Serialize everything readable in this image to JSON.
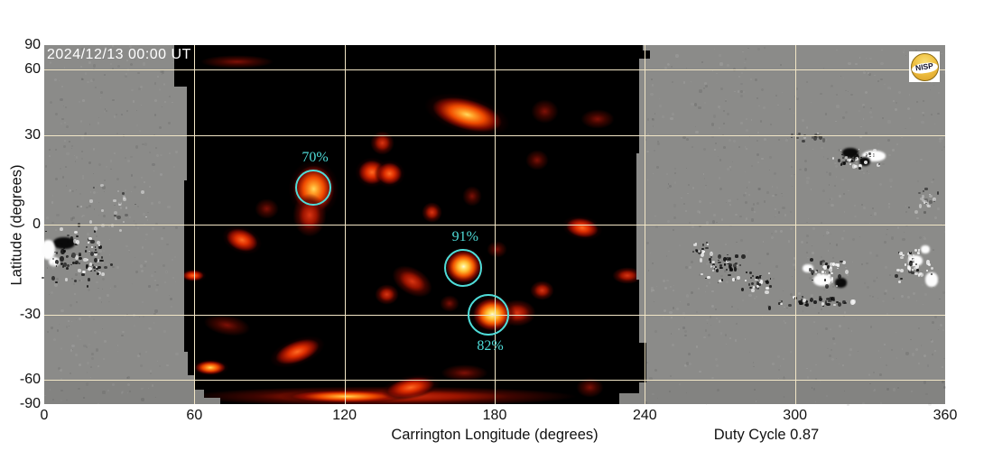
{
  "header": {
    "timestamp": "2024/12/13 00:00 UT",
    "logo_text": "NISP"
  },
  "footer": {
    "duty_cycle_label": "Duty Cycle 0.87"
  },
  "axes": {
    "x": {
      "label": "Carrington Longitude (degrees)",
      "ticks": [
        0,
        60,
        120,
        180,
        240,
        300,
        360
      ],
      "gridlines": [
        60,
        120,
        180,
        240,
        300
      ],
      "range": [
        0,
        360
      ]
    },
    "y": {
      "label": "Latitude (degrees)",
      "ticks": [
        90,
        60,
        30,
        0,
        -30,
        -60,
        -90
      ],
      "gridlines": [
        60,
        30,
        0,
        -30,
        -60
      ],
      "range": [
        -90,
        90
      ],
      "scale": "sine-latitude"
    }
  },
  "colors": {
    "near_side_gray": "#8b8b89",
    "far_side_black": "#000000",
    "grid": "#f2e6c6",
    "annotation_cyan": "#4fdcd8",
    "timestamp_white": "#ffffff",
    "tick_black": "#111111",
    "logo_gold": "#f0c243"
  },
  "chart_data": {
    "type": "heatmap",
    "title": "",
    "xlabel": "Carrington Longitude (degrees)",
    "ylabel": "Latitude (degrees)",
    "xlim": [
      0,
      360
    ],
    "ylim": [
      -90,
      90
    ],
    "grid": true,
    "far_side_window_longitude": [
      57,
      240
    ],
    "detections": [
      {
        "label": "70%",
        "lon": 107.5,
        "lat": 12,
        "r": 20,
        "side": "above"
      },
      {
        "label": "91%",
        "lon": 167.5,
        "lat": -14,
        "r": 21,
        "side": "above"
      },
      {
        "label": "82%",
        "lon": 177.5,
        "lat": -30,
        "r": 23,
        "side": "below"
      }
    ],
    "blobs": [
      {
        "lon": 77,
        "lat": 65,
        "sx": 22,
        "sy": 4,
        "rot": 0,
        "i": 0.3
      },
      {
        "lon": 169,
        "lat": 38,
        "sx": 26,
        "sy": 11,
        "rot": 15,
        "i": 0.9
      },
      {
        "lon": 200,
        "lat": 39,
        "sx": 8,
        "sy": 7,
        "rot": 0,
        "i": 0.35
      },
      {
        "lon": 221,
        "lat": 36,
        "sx": 10,
        "sy": 6,
        "rot": 0,
        "i": 0.3
      },
      {
        "lon": 135,
        "lat": 27,
        "sx": 7,
        "sy": 7,
        "rot": 0,
        "i": 0.5
      },
      {
        "lon": 107.5,
        "lat": 11.5,
        "sx": 15,
        "sy": 17,
        "rot": 0,
        "i": 0.85
      },
      {
        "lon": 106,
        "lat": 3,
        "sx": 10,
        "sy": 13,
        "rot": 0,
        "i": 0.5
      },
      {
        "lon": 131,
        "lat": 17,
        "sx": 10,
        "sy": 9,
        "rot": 0,
        "i": 0.7
      },
      {
        "lon": 138,
        "lat": 16.5,
        "sx": 9,
        "sy": 8,
        "rot": 0,
        "i": 0.6
      },
      {
        "lon": 197,
        "lat": 21,
        "sx": 7,
        "sy": 6,
        "rot": 0,
        "i": 0.35
      },
      {
        "lon": 171,
        "lat": 9,
        "sx": 6,
        "sy": 6,
        "rot": 0,
        "i": 0.3
      },
      {
        "lon": 89,
        "lat": 5,
        "sx": 7,
        "sy": 6,
        "rot": 0,
        "i": 0.35
      },
      {
        "lon": 155,
        "lat": 4,
        "sx": 6,
        "sy": 6,
        "rot": 0,
        "i": 0.5
      },
      {
        "lon": 79,
        "lat": -5,
        "sx": 12,
        "sy": 8,
        "rot": 20,
        "i": 0.6
      },
      {
        "lon": 59.5,
        "lat": -16.5,
        "sx": 8,
        "sy": 4,
        "rot": 0,
        "i": 0.65
      },
      {
        "lon": 147,
        "lat": -18.5,
        "sx": 13,
        "sy": 8,
        "rot": 30,
        "i": 0.55
      },
      {
        "lon": 137,
        "lat": -23,
        "sx": 7,
        "sy": 6,
        "rot": 0,
        "i": 0.5
      },
      {
        "lon": 167.5,
        "lat": -13.5,
        "sx": 13,
        "sy": 12,
        "rot": 0,
        "i": 1.0
      },
      {
        "lon": 181,
        "lat": -8,
        "sx": 6,
        "sy": 5,
        "rot": 0,
        "i": 0.35
      },
      {
        "lon": 215,
        "lat": -1,
        "sx": 12,
        "sy": 7,
        "rot": 10,
        "i": 0.6
      },
      {
        "lon": 199,
        "lat": -21.5,
        "sx": 7,
        "sy": 6,
        "rot": 0,
        "i": 0.5
      },
      {
        "lon": 189,
        "lat": -29.5,
        "sx": 11,
        "sy": 8,
        "rot": 0,
        "i": 0.45
      },
      {
        "lon": 179,
        "lat": -30,
        "sx": 14,
        "sy": 12,
        "rot": 0,
        "i": 1.0
      },
      {
        "lon": 162,
        "lat": -26,
        "sx": 6,
        "sy": 5,
        "rot": 0,
        "i": 0.4
      },
      {
        "lon": 73,
        "lat": -34,
        "sx": 14,
        "sy": 6,
        "rot": 10,
        "i": 0.4
      },
      {
        "lon": 101,
        "lat": -45,
        "sx": 17,
        "sy": 8,
        "rot": -20,
        "i": 0.7
      },
      {
        "lon": 66.5,
        "lat": -53,
        "sx": 11,
        "sy": 5,
        "rot": 0,
        "i": 0.8
      },
      {
        "lon": 168,
        "lat": -55.5,
        "sx": 14,
        "sy": 5,
        "rot": 0,
        "i": 0.3
      },
      {
        "lon": 135.5,
        "lat": -73,
        "sx": 115,
        "sy": 6,
        "rot": 0,
        "i": 0.55
      },
      {
        "lon": 121,
        "lat": -73,
        "sx": 40,
        "sy": 4.5,
        "rot": 0,
        "i": 0.85
      },
      {
        "lon": 146.5,
        "lat": -65,
        "sx": 18,
        "sy": 7,
        "rot": -10,
        "i": 0.75
      },
      {
        "lon": 218,
        "lat": -65,
        "sx": 8,
        "sy": 6,
        "rot": 0,
        "i": 0.3
      },
      {
        "lon": 233,
        "lat": -16.5,
        "sx": 9,
        "sy": 5,
        "rot": 0,
        "i": 0.55
      }
    ],
    "magnetogram_patches": [
      {
        "lon": 8,
        "lat": -6,
        "w": 24,
        "h": 13,
        "color": "black"
      },
      {
        "lon": 1.5,
        "lat": -8,
        "w": 15,
        "h": 22,
        "color": "white"
      },
      {
        "lon": 4,
        "lat": -12,
        "w": 12,
        "h": 10,
        "color": "white"
      },
      {
        "lon": 331.5,
        "lat": 22.5,
        "w": 26,
        "h": 12,
        "color": "white"
      },
      {
        "lon": 322,
        "lat": 23.5,
        "w": 18,
        "h": 11,
        "color": "black"
      },
      {
        "lon": 328,
        "lat": 20.5,
        "w": 12,
        "h": 10,
        "color": "black"
      },
      {
        "lon": 311,
        "lat": -18,
        "w": 20,
        "h": 13,
        "color": "white"
      },
      {
        "lon": 318.5,
        "lat": -19,
        "w": 13,
        "h": 11,
        "color": "black"
      },
      {
        "lon": 305,
        "lat": -14,
        "w": 12,
        "h": 9,
        "color": "white"
      },
      {
        "lon": 348,
        "lat": -11.5,
        "w": 16,
        "h": 12,
        "color": "white"
      },
      {
        "lon": 354.5,
        "lat": -18,
        "w": 14,
        "h": 16,
        "color": "white"
      },
      {
        "lon": 352,
        "lat": -8,
        "w": 10,
        "h": 9,
        "color": "white"
      }
    ],
    "speckle_clusters": [
      {
        "lon": 13,
        "lat": -10,
        "sx": 42,
        "sy": 34,
        "n": 90,
        "wf": 0.35,
        "seed": 7,
        "faint": false
      },
      {
        "lon": 27,
        "lat": 6,
        "sx": 45,
        "sy": 30,
        "n": 30,
        "wf": 0.65,
        "seed": 11,
        "faint": true
      },
      {
        "lon": 324,
        "lat": 22,
        "sx": 30,
        "sy": 14,
        "n": 45,
        "wf": 0.3,
        "seed": 23,
        "faint": false
      },
      {
        "lon": 303,
        "lat": 30,
        "sx": 26,
        "sy": 8,
        "n": 16,
        "wf": 0.3,
        "seed": 31,
        "faint": true
      },
      {
        "lon": 270,
        "lat": -13,
        "sx": 30,
        "sy": 22,
        "n": 55,
        "wf": 0.25,
        "seed": 41,
        "faint": false
      },
      {
        "lon": 284,
        "lat": -18,
        "sx": 20,
        "sy": 13,
        "n": 32,
        "wf": 0.3,
        "seed": 43,
        "faint": false
      },
      {
        "lon": 262,
        "lat": -8,
        "sx": 14,
        "sy": 10,
        "n": 18,
        "wf": 0.4,
        "seed": 47,
        "faint": false
      },
      {
        "lon": 313,
        "lat": -15,
        "sx": 26,
        "sy": 17,
        "n": 45,
        "wf": 0.55,
        "seed": 53,
        "faint": false
      },
      {
        "lon": 347,
        "lat": -13,
        "sx": 22,
        "sy": 20,
        "n": 50,
        "wf": 0.7,
        "seed": 59,
        "faint": false
      },
      {
        "lon": 306,
        "lat": -25,
        "sx": 55,
        "sy": 8,
        "n": 40,
        "wf": 0.2,
        "seed": 61,
        "faint": false
      },
      {
        "lon": 352,
        "lat": 8,
        "sx": 22,
        "sy": 16,
        "n": 22,
        "wf": 0.5,
        "seed": 67,
        "faint": true
      }
    ]
  }
}
